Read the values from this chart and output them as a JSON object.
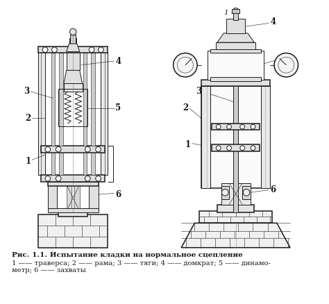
{
  "title_line1": "Рис. 1.1. Испытание кладки на нормальное сцепление",
  "title_line2": "1 —— траверса; 2 —— рама; 3 —— тяги; 4 —— домкрат; 5 —— динамо-",
  "title_line3": "метр; 6 —— захваты",
  "section_label": "1 - 1",
  "bg_color": "#ffffff",
  "line_color": "#1a1a1a",
  "text_color": "#1a1a1a",
  "caption_fontsize": 7.5,
  "label_fontsize": 8.5,
  "figw": 4.74,
  "figh": 4.38,
  "dpi": 100
}
